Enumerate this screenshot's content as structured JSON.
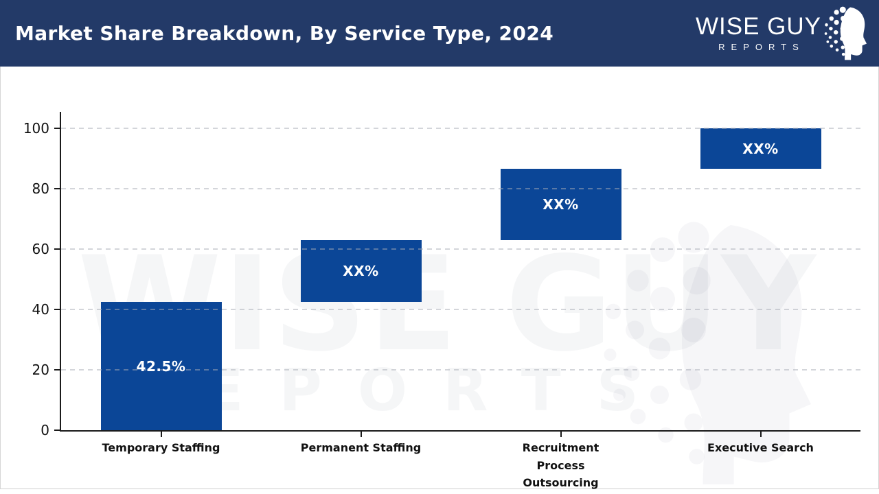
{
  "header": {
    "title": "Market Share Breakdown, By Service Type, 2024",
    "bg_color": "#233a68",
    "logo": {
      "line1": "WISE GUY",
      "line2": "REPORTS"
    }
  },
  "watermark": {
    "line1": "WISE GUY",
    "line2": "REPORTS"
  },
  "chart_data": {
    "type": "bar",
    "subtype": "floating-waterfall",
    "title": "Market Share Breakdown, By Service Type, 2024",
    "categories": [
      "Temporary Staffing",
      "Permanent Staffing",
      "Recruitment Process Outsourcing",
      "Executive Search"
    ],
    "bars": [
      {
        "category": "Temporary Staffing",
        "from": 0,
        "to": 42.5,
        "label": "42.5%"
      },
      {
        "category": "Permanent Staffing",
        "from": 42.5,
        "to": 63,
        "label": "XX%"
      },
      {
        "category": "Recruitment\nProcess\nOutsourcing",
        "from": 63,
        "to": 86.5,
        "label": "XX%"
      },
      {
        "category": "Executive Search",
        "from": 86.5,
        "to": 100,
        "label": "XX%"
      }
    ],
    "xlabel": "",
    "ylabel": "",
    "ylim": [
      0,
      105.5
    ],
    "yticks": [
      0,
      20,
      40,
      60,
      80,
      100
    ],
    "grid": "horizontal-dashed-over-bars",
    "legend": "none",
    "bar_color": "#0b4697",
    "value_label_color": "#ffffff",
    "axis_color": "#1a1a1a"
  }
}
